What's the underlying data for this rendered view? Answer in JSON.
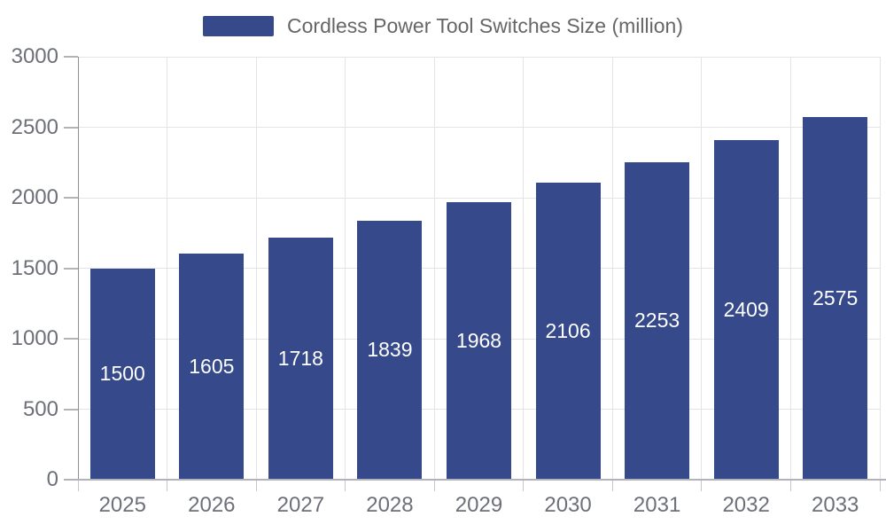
{
  "legend": {
    "label": "Cordless Power Tool Switches Size (million)"
  },
  "chart_data": {
    "type": "bar",
    "title": "Cordless Power Tool Switches Size (million)",
    "series_name": "Cordless Power Tool Switches Size (million)",
    "categories": [
      "2025",
      "2026",
      "2027",
      "2028",
      "2029",
      "2030",
      "2031",
      "2032",
      "2033"
    ],
    "values": [
      1500,
      1605,
      1718,
      1839,
      1968,
      2106,
      2253,
      2409,
      2575
    ],
    "xlabel": "",
    "ylabel": "",
    "ylim": [
      0,
      3000
    ],
    "y_ticks": [
      0,
      500,
      1000,
      1500,
      2000,
      2500,
      3000
    ],
    "grid": true,
    "legend_position": "top-center",
    "bar_color": "#36498a",
    "value_label_color": "#ffffff",
    "axis_label_color": "#6e7079",
    "legend_text_color": "#666666",
    "grid_color": "#e3e4e8"
  }
}
